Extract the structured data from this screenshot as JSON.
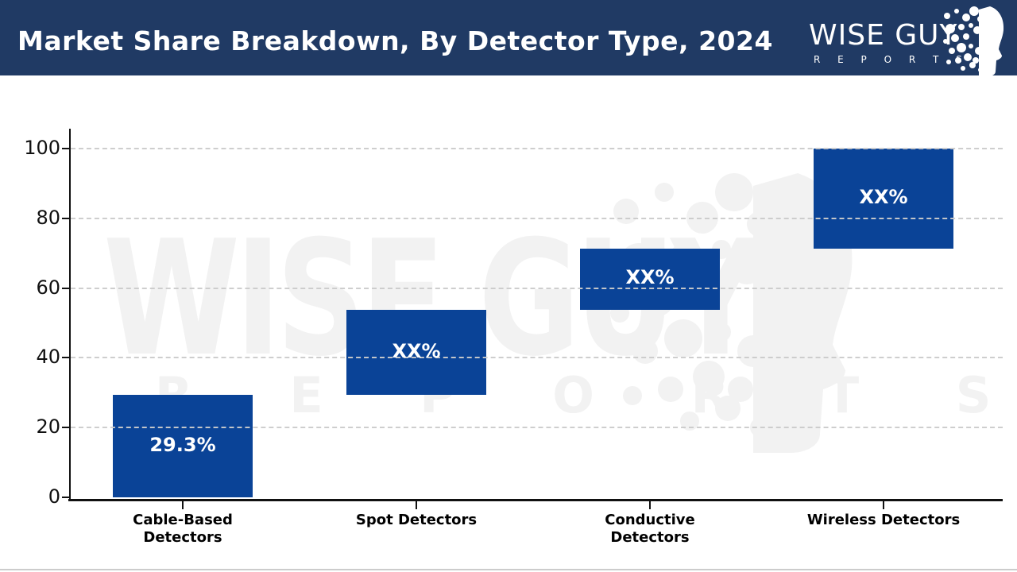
{
  "header": {
    "title": "Market Share Breakdown, By Detector Type, 2024",
    "logo": {
      "brand_line1": "WISE GUY",
      "brand_line2": "R E P O R T S"
    }
  },
  "watermark": {
    "line1": "WISE GUY",
    "line2": "R E P O R T S"
  },
  "chart_data": {
    "type": "bar",
    "subtype": "waterfall-floating-bars",
    "title": "Market Share Breakdown, By Detector Type, 2024",
    "categories": [
      "Cable-Based Detectors",
      "Spot Detectors",
      "Conductive Detectors",
      "Wireless Detectors"
    ],
    "category_lines": [
      [
        "Cable-Based",
        "Detectors"
      ],
      [
        "Spot Detectors"
      ],
      [
        "Conductive",
        "Detectors"
      ],
      [
        "Wireless Detectors"
      ]
    ],
    "segments": [
      {
        "category": "Cable-Based Detectors",
        "start": 0,
        "end": 29.3,
        "label": "29.3%"
      },
      {
        "category": "Spot Detectors",
        "start": 29.3,
        "end": 53.8,
        "label": "XX%"
      },
      {
        "category": "Conductive Detectors",
        "start": 53.8,
        "end": 71.4,
        "label": "XX%"
      },
      {
        "category": "Wireless Detectors",
        "start": 71.4,
        "end": 100,
        "label": "XX%"
      }
    ],
    "ylim": [
      0,
      100
    ],
    "yticks": [
      0,
      20,
      40,
      60,
      80,
      100
    ],
    "xlabel": "",
    "ylabel": "",
    "grid": "horizontal-dashed",
    "legend": "none",
    "bar_color": "#0a4397",
    "bar_label_color": "#ffffff",
    "grid_color": "#cccccc",
    "axis_color": "#111111"
  },
  "colors": {
    "header_bg": "#203a64",
    "bar": "#0a4397",
    "grid": "#cccccc",
    "watermark": "#f2f2f2",
    "title_text": "#ffffff"
  }
}
